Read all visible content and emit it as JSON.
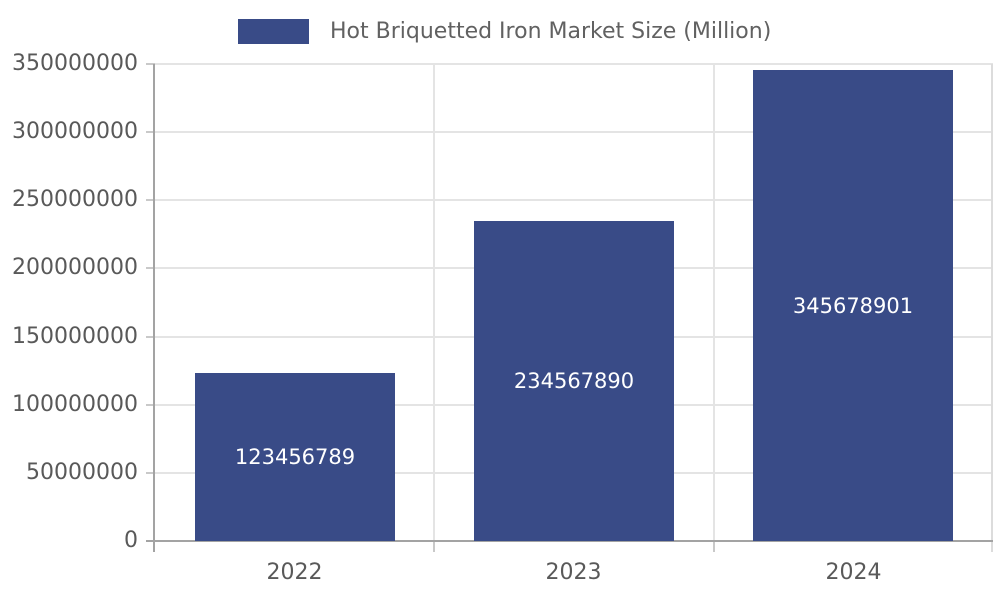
{
  "colors": {
    "bar": "#394B87",
    "grid": "#E4E4E4",
    "axis": "#A3A3A3",
    "boundary": "#DCDCDC",
    "tick": "#C9C9C9",
    "tick_label": "#595959",
    "title_text": "#616161",
    "value_label": "#FFFFFF",
    "background": "#FFFFFF"
  },
  "legend": {
    "position": "top",
    "label": "Hot Briquetted Iron Market Size (Million)"
  },
  "chart_data": {
    "type": "bar",
    "title": "Hot Briquetted Iron Market Size (Million)",
    "categories": [
      "2022",
      "2023",
      "2024"
    ],
    "values": [
      123456789,
      234567890,
      345678901
    ],
    "value_labels": [
      "123456789",
      "234567890",
      "345678901"
    ],
    "xlabel": "",
    "ylabel": "",
    "ylim": [
      0,
      350000000
    ],
    "yticks": [
      0,
      50000000,
      100000000,
      150000000,
      200000000,
      250000000,
      300000000,
      350000000
    ],
    "ytick_labels": [
      "0",
      "50000000",
      "100000000",
      "150000000",
      "200000000",
      "250000000",
      "300000000",
      "350000000"
    ],
    "grid": true,
    "legend_position": "top",
    "legend_entries": [
      "Hot Briquetted Iron Market Size (Million)"
    ]
  }
}
